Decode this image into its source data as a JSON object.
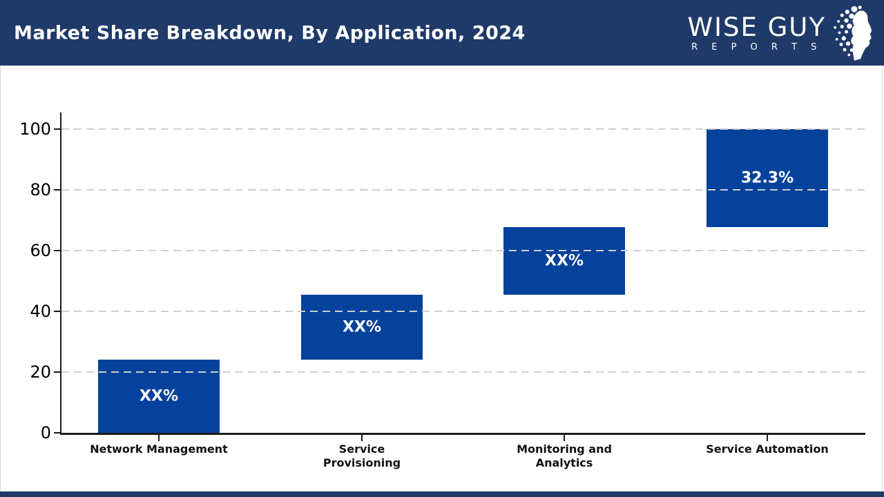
{
  "header": {
    "title": "Market Share Breakdown, By Application, 2024",
    "logo": {
      "line1": "WISE GUY",
      "line2": "R E P O R T S"
    }
  },
  "watermark": {
    "word": "WISE GU",
    "reports": "R E P O R T S"
  },
  "chart_data": {
    "type": "bar",
    "subtype": "waterfall",
    "title": "Market Share Breakdown, By Application, 2024",
    "categories": [
      "Network Management",
      "Service Provisioning",
      "Monitoring and Analytics",
      "Service Automation"
    ],
    "category_label_lines": [
      [
        "Network Management"
      ],
      [
        "Service",
        "Provisioning"
      ],
      [
        "Monitoring and",
        "Analytics"
      ],
      [
        "Service Automation"
      ]
    ],
    "series": [
      {
        "name": "Market Share",
        "segments": [
          {
            "start": 0,
            "end": 24
          },
          {
            "start": 24,
            "end": 45.3
          },
          {
            "start": 45.3,
            "end": 67.7
          },
          {
            "start": 67.7,
            "end": 100
          }
        ]
      }
    ],
    "bar_labels": [
      "XX%",
      "XX%",
      "XX%",
      "32.3%"
    ],
    "ylim": [
      0,
      100
    ],
    "yticks": [
      0,
      20,
      40,
      60,
      80,
      100
    ],
    "xlabel": "",
    "ylabel": "",
    "grid": "horizontal-dashed",
    "legend": "none",
    "colors": {
      "bar": "#05429b",
      "bar_label_text": "#ffffff",
      "grid": "#cfcfcf",
      "axis": "#1a1a1a",
      "header_bg": "#1f3a68",
      "watermark": "#f3f3f5"
    }
  }
}
